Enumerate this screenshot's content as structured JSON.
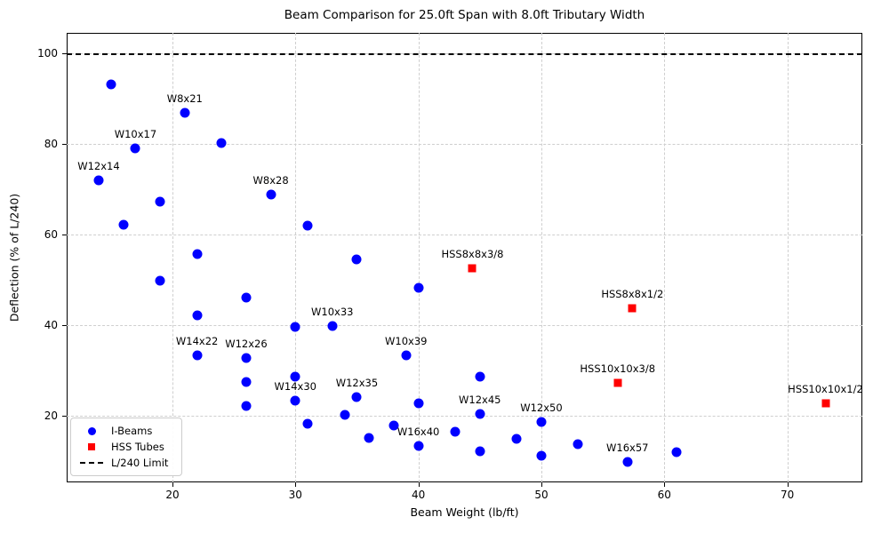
{
  "chart_data": {
    "type": "scatter",
    "title": "Beam Comparison for 25.0ft Span with 8.0ft Tributary Width",
    "xlabel": "Beam Weight (lb/ft)",
    "ylabel": "Deflection (% of L/240)",
    "xlim": [
      11.4,
      76.1
    ],
    "ylim": [
      5.3,
      104.6
    ],
    "xticks": [
      20,
      30,
      40,
      50,
      60,
      70
    ],
    "yticks": [
      20,
      40,
      60,
      80,
      100
    ],
    "grid": true,
    "grid_style": "dashed",
    "legend_position": "lower-left",
    "limit_line": {
      "y": 100,
      "label": "L/240 Limit",
      "style": "dashed",
      "color": "#000000"
    },
    "series": [
      {
        "name": "I-Beams",
        "marker": "circle",
        "color": "#0000ff",
        "points": [
          {
            "x": 14,
            "y": 72.0,
            "label": "W12x14"
          },
          {
            "x": 15,
            "y": 93.3,
            "label": ""
          },
          {
            "x": 16,
            "y": 62.2,
            "label": ""
          },
          {
            "x": 17,
            "y": 79.0,
            "label": "W10x17"
          },
          {
            "x": 19,
            "y": 67.3,
            "label": ""
          },
          {
            "x": 19,
            "y": 49.8,
            "label": ""
          },
          {
            "x": 21,
            "y": 87.0,
            "label": "W8x21"
          },
          {
            "x": 22,
            "y": 55.7,
            "label": ""
          },
          {
            "x": 22,
            "y": 42.1,
            "label": ""
          },
          {
            "x": 22,
            "y": 33.3,
            "label": "W14x22"
          },
          {
            "x": 24,
            "y": 80.2,
            "label": ""
          },
          {
            "x": 26,
            "y": 46.2,
            "label": ""
          },
          {
            "x": 26,
            "y": 32.7,
            "label": "W12x26"
          },
          {
            "x": 26,
            "y": 27.4,
            "label": ""
          },
          {
            "x": 26,
            "y": 22.1,
            "label": ""
          },
          {
            "x": 28,
            "y": 68.8,
            "label": "W8x28"
          },
          {
            "x": 30,
            "y": 39.7,
            "label": ""
          },
          {
            "x": 30,
            "y": 28.6,
            "label": ""
          },
          {
            "x": 30,
            "y": 23.3,
            "label": "W14x30"
          },
          {
            "x": 31,
            "y": 62.0,
            "label": ""
          },
          {
            "x": 31,
            "y": 18.2,
            "label": ""
          },
          {
            "x": 33,
            "y": 39.8,
            "label": "W10x33"
          },
          {
            "x": 34,
            "y": 20.2,
            "label": ""
          },
          {
            "x": 35,
            "y": 54.6,
            "label": ""
          },
          {
            "x": 35,
            "y": 24.1,
            "label": "W12x35"
          },
          {
            "x": 36,
            "y": 15.2,
            "label": ""
          },
          {
            "x": 38,
            "y": 17.8,
            "label": ""
          },
          {
            "x": 39,
            "y": 33.4,
            "label": "W10x39"
          },
          {
            "x": 40,
            "y": 48.2,
            "label": ""
          },
          {
            "x": 40,
            "y": 22.8,
            "label": ""
          },
          {
            "x": 40,
            "y": 13.4,
            "label": "W16x40"
          },
          {
            "x": 43,
            "y": 16.5,
            "label": ""
          },
          {
            "x": 45,
            "y": 28.7,
            "label": ""
          },
          {
            "x": 45,
            "y": 20.4,
            "label": "W12x45"
          },
          {
            "x": 45,
            "y": 12.2,
            "label": ""
          },
          {
            "x": 48,
            "y": 15.0,
            "label": ""
          },
          {
            "x": 50,
            "y": 18.7,
            "label": "W12x50"
          },
          {
            "x": 50,
            "y": 11.1,
            "label": ""
          },
          {
            "x": 53,
            "y": 13.7,
            "label": ""
          },
          {
            "x": 57,
            "y": 9.9,
            "label": "W16x57"
          },
          {
            "x": 61,
            "y": 11.9,
            "label": ""
          }
        ]
      },
      {
        "name": "HSS Tubes",
        "marker": "square",
        "color": "#ff0000",
        "points": [
          {
            "x": 44.4,
            "y": 52.5,
            "label": "HSS8x8x3/8"
          },
          {
            "x": 57.4,
            "y": 43.7,
            "label": "HSS8x8x1/2"
          },
          {
            "x": 56.2,
            "y": 27.3,
            "label": "HSS10x10x3/8"
          },
          {
            "x": 73.1,
            "y": 22.8,
            "label": "HSS10x10x1/2"
          }
        ]
      }
    ]
  }
}
